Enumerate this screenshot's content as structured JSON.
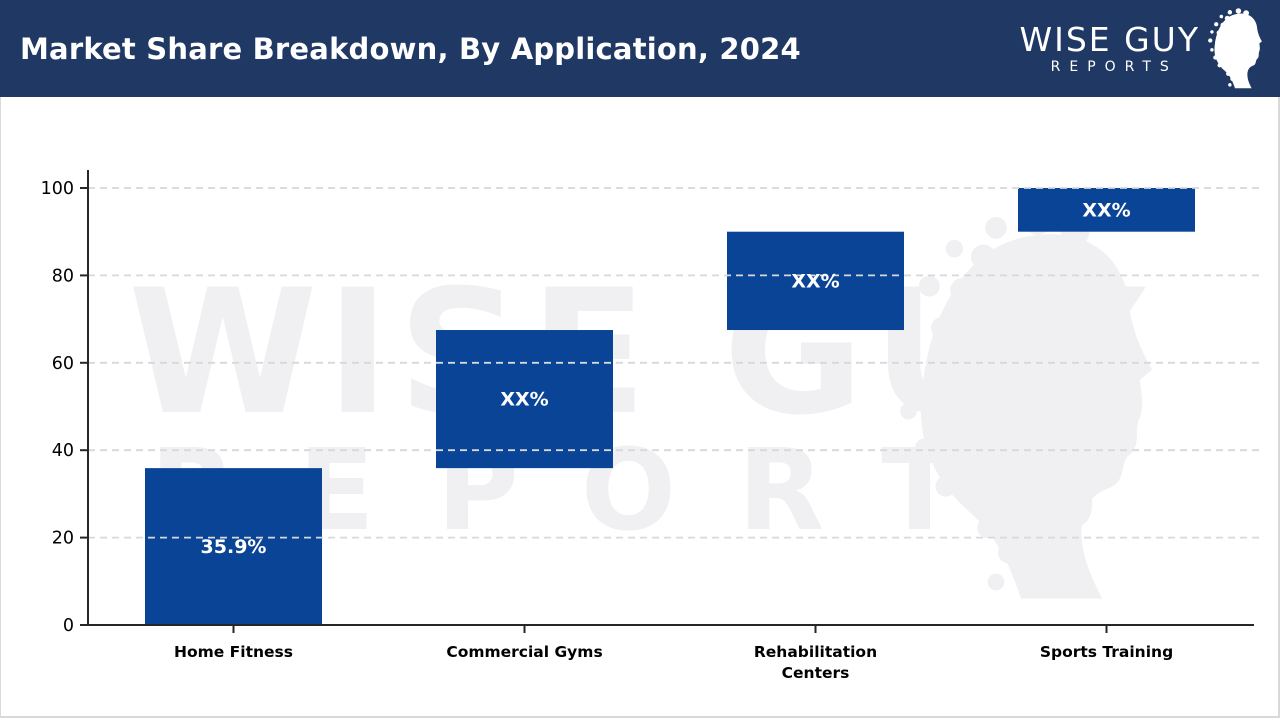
{
  "header": {
    "title": "Market Share Breakdown, By Application, 2024",
    "brand": {
      "line1": "WISE GUY",
      "line2": "REPORTS"
    }
  },
  "watermark": {
    "line1": "WISE GUY",
    "line2": "REPORTS"
  },
  "colors": {
    "header_bg": "#1f3864",
    "bar": "#0a4496",
    "axis": "#262626",
    "grid": "#d8d8d8",
    "tick_label": "#000000",
    "category_label": "#000000",
    "value_label": "#ffffff",
    "watermark": "#f0f0f2"
  },
  "chart_data": {
    "type": "bar",
    "subtype": "waterfall",
    "title": "Market Share Breakdown, By Application, 2024",
    "categories": [
      "Home Fitness",
      "Commercial Gyms",
      "Rehabilitation Centers",
      "Sports Training"
    ],
    "segments": [
      {
        "category": "Home Fitness",
        "start": 0,
        "end": 35.9,
        "label": "35.9%"
      },
      {
        "category": "Commercial Gyms",
        "start": 35.9,
        "end": 67.5,
        "label": "XX%"
      },
      {
        "category": "Rehabilitation Centers",
        "start": 67.5,
        "end": 90,
        "label": "XX%"
      },
      {
        "category": "Sports Training",
        "start": 90,
        "end": 100,
        "label": "XX%"
      }
    ],
    "ylim": [
      0,
      100
    ],
    "yticks": [
      0,
      20,
      40,
      60,
      80,
      100
    ],
    "xlabel": "",
    "ylabel": "",
    "grid": "horizontal-dashed",
    "legend": "none",
    "bar_color": "#0a4496",
    "value_label_color": "#ffffff"
  }
}
